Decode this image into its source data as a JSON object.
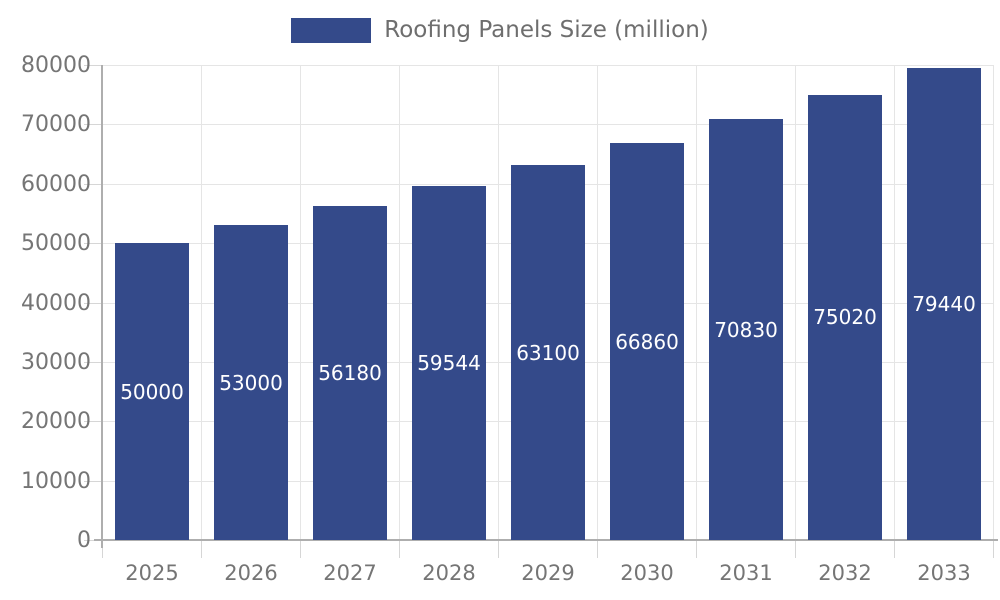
{
  "legend": {
    "label": "Roofing Panels Size (million)"
  },
  "chart_data": {
    "type": "bar",
    "title": "",
    "categories": [
      "2025",
      "2026",
      "2027",
      "2028",
      "2029",
      "2030",
      "2031",
      "2032",
      "2033"
    ],
    "values": [
      50000,
      53000,
      56180,
      59544,
      63100,
      66860,
      70830,
      75020,
      79440
    ],
    "series_name": "Roofing Panels Size (million)",
    "xlabel": "",
    "ylabel": "",
    "ylim": [
      0,
      80000
    ],
    "ytick_step": 10000,
    "ytick_labels": [
      "0",
      "10000",
      "20000",
      "30000",
      "40000",
      "50000",
      "60000",
      "70000",
      "80000"
    ],
    "grid": true,
    "legend_position": "top-center",
    "bar_labels_inside": true
  },
  "colors": {
    "bar": "#344a8a",
    "bar_label_text": "#ffffff",
    "axis_line": "#aeaeae",
    "tick_line": "#d6d6d6",
    "grid_line": "#e5e5e5",
    "axis_label_text": "#757575",
    "legend_text": "#6e6e6e",
    "background": "#ffffff"
  }
}
